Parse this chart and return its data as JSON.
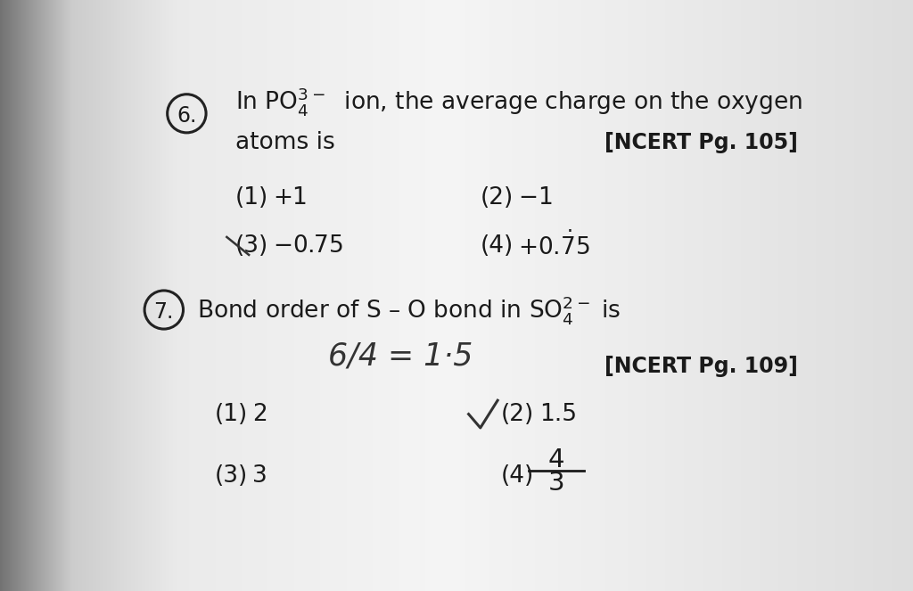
{
  "bg_left_color": "#909090",
  "bg_center_color": "#d8d8d8",
  "bg_right_color": "#b8b8b8",
  "text_color": "#1a1a1a",
  "q6_num": "6.",
  "q7_num": "7.",
  "q6_line1": "In PO$_4^{3-}$  ion, the average charge on the oxygen",
  "q6_line2": "atoms is",
  "q6_ref": "[NCERT Pg. 105]",
  "q6_opt1_label": "(1)",
  "q6_opt1_val": "+1",
  "q6_opt2_label": "(2)",
  "q6_opt2_val": "-1",
  "q6_opt3_label": "(3)",
  "q6_opt3_val": "-0.75",
  "q6_opt4_label": "(4)",
  "q6_opt4_val": "+0.75",
  "q7_line1": "Bond order of S – O bond in SO$_4^{2-}$ is",
  "q7_handwritten": "6/4 = 1·5",
  "q7_ref": "[NCERT Pg. 109]",
  "q7_opt1_label": "(1)",
  "q7_opt1_val": "2",
  "q7_opt2_label": "(2)",
  "q7_opt2_val": "1.5",
  "q7_opt3_label": "(3)",
  "q7_opt3_val": "3",
  "q7_opt4_label": "(4)",
  "q7_opt4_num": "4",
  "q7_opt4_den": "3",
  "circle_color": "#222222",
  "hand_color": "#333333",
  "ref_fontsize": 17,
  "main_fontsize": 19,
  "opt_fontsize": 19,
  "hand_fontsize": 22,
  "circ_fontsize": 17
}
